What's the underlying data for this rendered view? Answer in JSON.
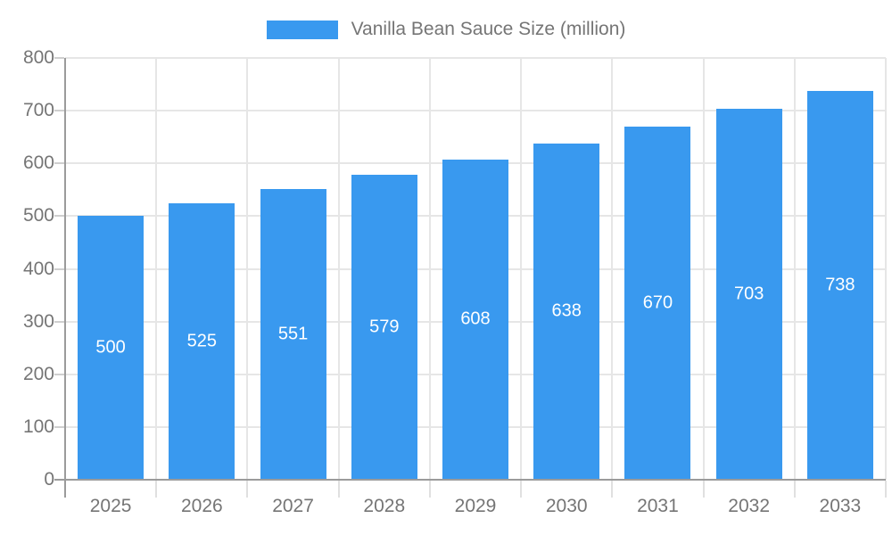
{
  "chart_data": {
    "type": "bar",
    "title": "Vanilla Bean Sauce Size (million)",
    "categories": [
      "2025",
      "2026",
      "2027",
      "2028",
      "2029",
      "2030",
      "2031",
      "2032",
      "2033"
    ],
    "values": [
      500,
      525,
      551,
      579,
      608,
      638,
      670,
      703,
      738
    ],
    "xlabel": "",
    "ylabel": "",
    "ylim": [
      0,
      800
    ],
    "yticks": [
      0,
      100,
      200,
      300,
      400,
      500,
      600,
      700,
      800
    ],
    "grid": true,
    "legend_position": "top-center",
    "value_labels": "inside-center",
    "bar_color": "#3999EF",
    "value_label_color": "#ffffff",
    "axis_text_color": "#757575",
    "gridline_color": "#e6e6e6",
    "axis_line_color": "#9b9b9b"
  }
}
